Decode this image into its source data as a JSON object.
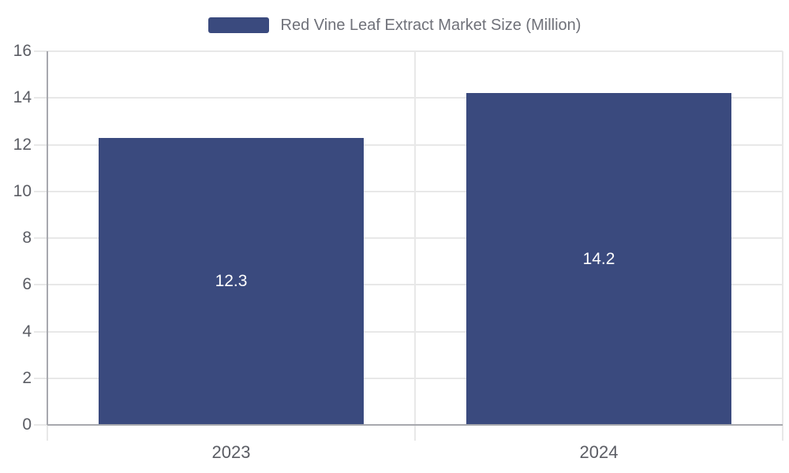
{
  "chart_data": {
    "type": "bar",
    "title": "Red Vine Leaf Extract Market Size (Million)",
    "legend": {
      "label": "Red Vine Leaf Extract Market Size (Million)",
      "position": "top-center"
    },
    "categories": [
      "2023",
      "2024"
    ],
    "series": [
      {
        "name": "Red Vine Leaf Extract Market Size (Million)",
        "values": [
          12.3,
          14.2
        ],
        "value_labels": [
          "12.3",
          "14.2"
        ]
      }
    ],
    "xlabel": "",
    "ylabel": "",
    "ylim": [
      0,
      16
    ],
    "y_ticks": [
      0,
      2,
      4,
      6,
      8,
      10,
      12,
      14,
      16
    ],
    "grid": true,
    "colors": {
      "bar": "#3A4A7E",
      "value_label": "#FFFFFF",
      "gridline": "#E8E8E8",
      "axis_line": "#A7A8AE",
      "tick_label": "#5B5D64",
      "legend_text": "#6F7179",
      "background": "#FFFFFF"
    }
  }
}
